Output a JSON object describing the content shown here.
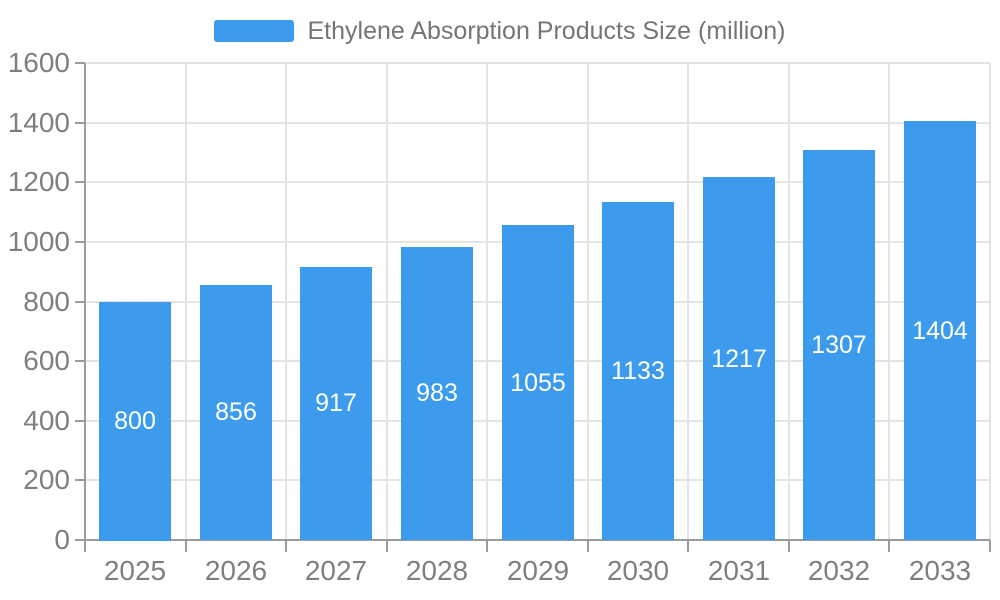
{
  "chart_data": {
    "type": "bar",
    "title": "Ethylene Absorption Products Size (million)",
    "legend": {
      "position": "top-center",
      "entries": [
        "Ethylene Absorption Products Size (million)"
      ]
    },
    "categories": [
      "2025",
      "2026",
      "2027",
      "2028",
      "2029",
      "2030",
      "2031",
      "2032",
      "2033"
    ],
    "values": [
      800,
      856,
      917,
      983,
      1055,
      1133,
      1217,
      1307,
      1404
    ],
    "xlabel": "",
    "ylabel": "",
    "ylim": [
      0,
      1600
    ],
    "ytick_step": 200,
    "yticks": [
      0,
      200,
      400,
      600,
      800,
      1000,
      1200,
      1400,
      1600
    ],
    "grid": true,
    "bar_labels_shown": true,
    "colors": {
      "bar": "#3d9bee",
      "bar_label_text": "#ffffff",
      "axis_label_text": "#7f7f7f",
      "legend_text": "#757575",
      "axis_line": "#9b9b9b",
      "grid_line": "#e4e4e4",
      "background": "#ffffff"
    }
  }
}
